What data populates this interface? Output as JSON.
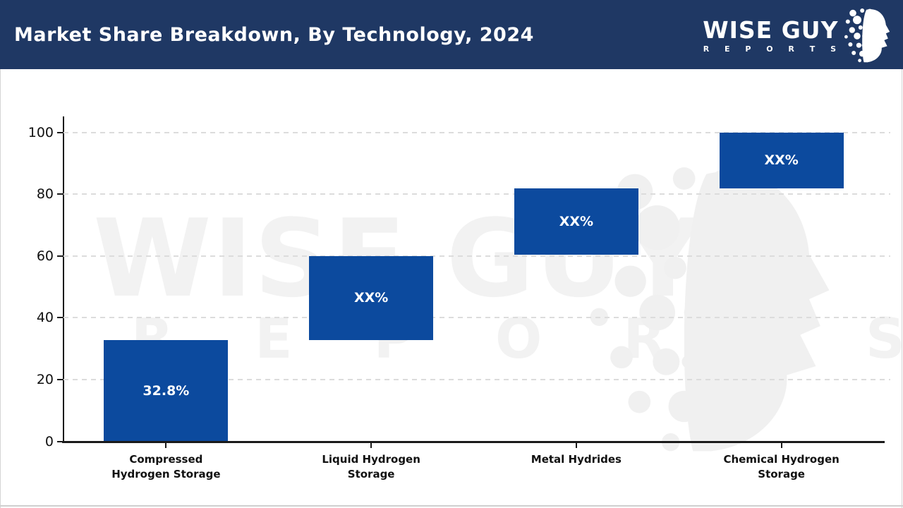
{
  "header": {
    "title": "Market Share Breakdown, By Technology, 2024",
    "background": "#1f3864",
    "logo": {
      "title": "WISE GUY",
      "subtitle": "R E P O R T S"
    }
  },
  "watermark": {
    "title": "WISE GUY",
    "subtitle": "R E P O R T S"
  },
  "chart_data": {
    "type": "bar",
    "variant": "waterfall",
    "title": "Market Share Breakdown, By Technology, 2024",
    "categories": [
      "Compressed Hydrogen Storage",
      "Liquid Hydrogen Storage",
      "Metal Hydrides",
      "Chemical Hydrogen Storage"
    ],
    "category_labels_wrapped": [
      "Compressed\nHydrogen Storage",
      "Liquid Hydrogen\nStorage",
      "Metal Hydrides",
      "Chemical Hydrogen\nStorage"
    ],
    "segments": [
      {
        "category": "Compressed Hydrogen Storage",
        "start": 0,
        "end": 32.8,
        "label": "32.8%"
      },
      {
        "category": "Liquid Hydrogen Storage",
        "start": 32.8,
        "end": 60.0,
        "label": "XX%"
      },
      {
        "category": "Metal Hydrides",
        "start": 60.5,
        "end": 82.0,
        "label": "XX%"
      },
      {
        "category": "Chemical Hydrogen Storage",
        "start": 82.0,
        "end": 100.0,
        "label": "XX%"
      }
    ],
    "ylim": [
      0,
      100
    ],
    "yticks": [
      0,
      20,
      40,
      60,
      80,
      100
    ],
    "grid": "horizontal-dashed",
    "legend": "none",
    "bar_color": "#0c4a9e",
    "bar_label_color": "#ffffff",
    "axis_color": "#1a1a1a",
    "grid_color": "#dcdcdc"
  }
}
